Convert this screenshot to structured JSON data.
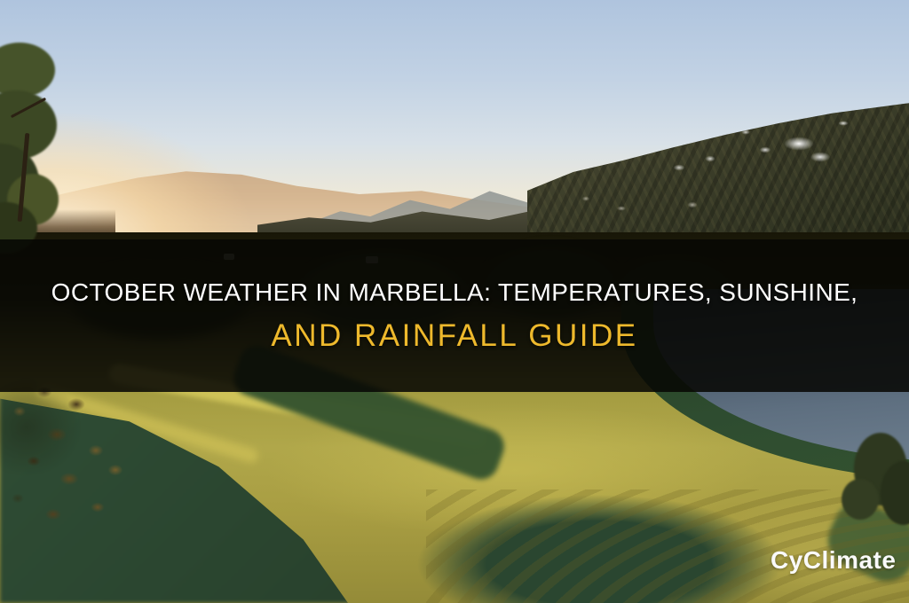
{
  "page": {
    "title_line1": "OCTOBER WEATHER IN MARBELLA: TEMPERATURES, SUNSHINE,",
    "title_line2": "AND RAINFALL GUIDE",
    "brand": "CyClimate"
  },
  "colors": {
    "title-primary": "#ffffff",
    "title-accent": "#eeb92c",
    "overlay": "rgba(7,7,3,0.87)",
    "brand": "#fafafa",
    "sky-top": "#afc4de",
    "sunset-glow": "#fbdeac",
    "fairway": "#a89d42",
    "shadow-green": "#2c4a31",
    "lake": "#5e6f80"
  }
}
